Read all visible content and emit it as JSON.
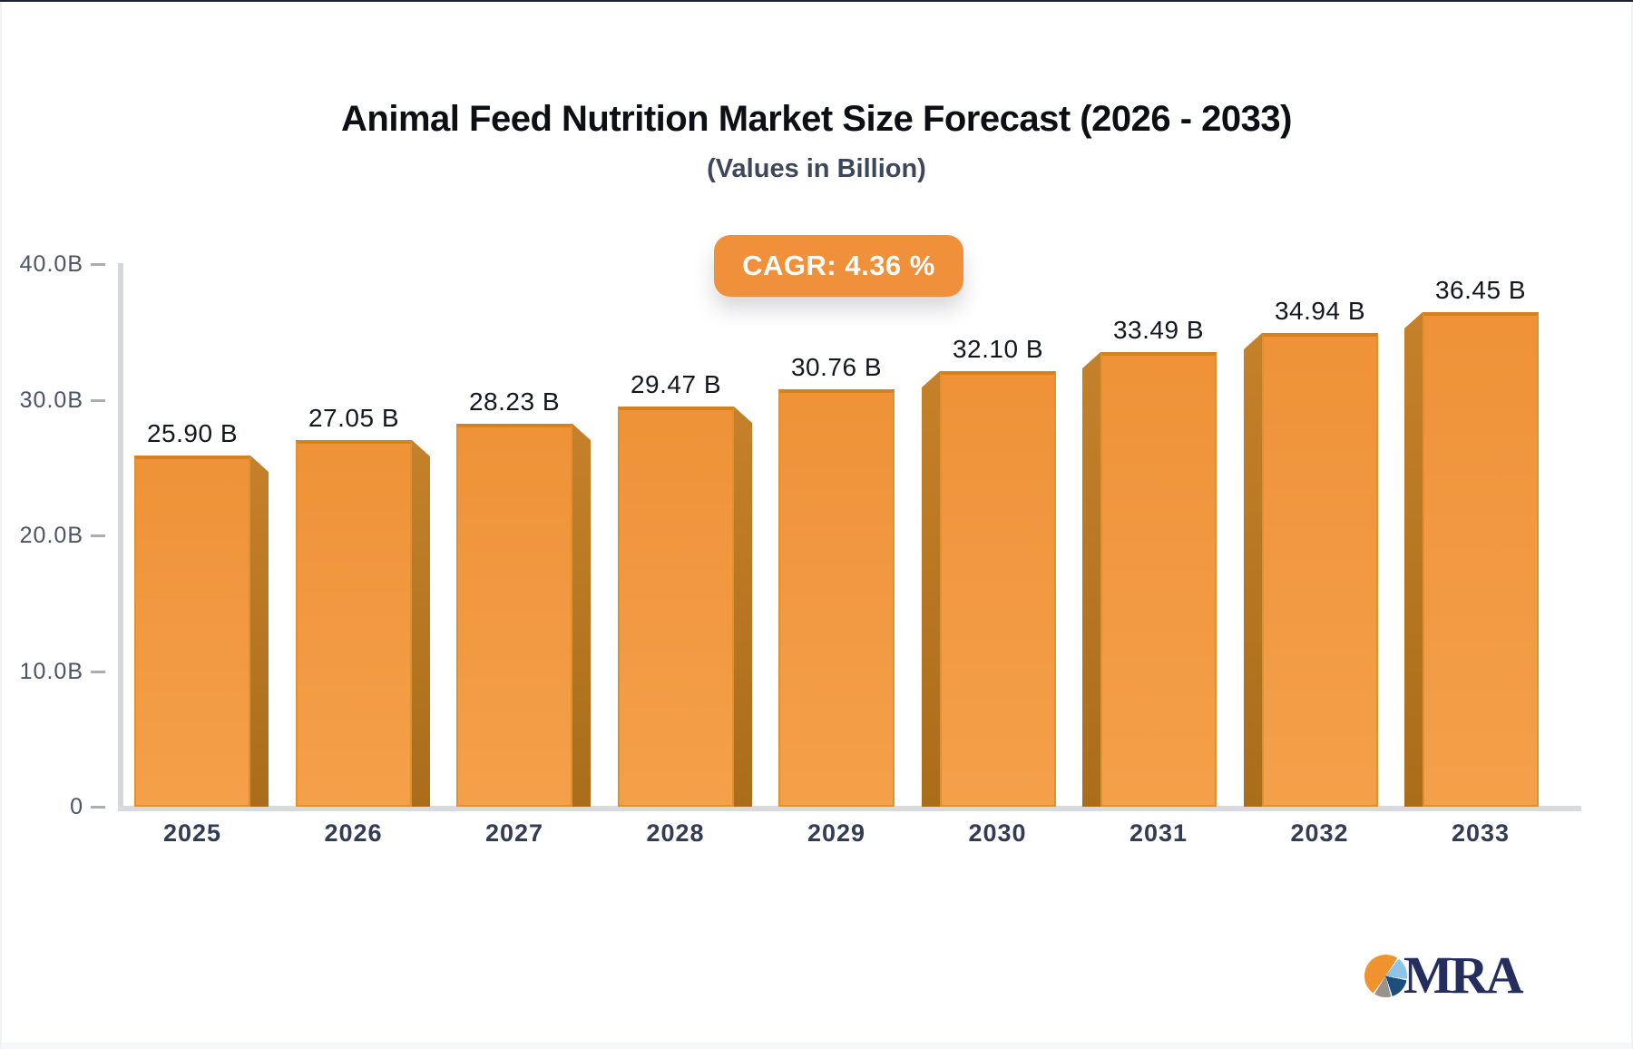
{
  "chart_data": {
    "type": "bar",
    "title": "Animal Feed Nutrition Market Size Forecast (2026 - 2033)",
    "subtitle": "(Values in Billion)",
    "cagr_badge_label": "CAGR: 4.36 %",
    "categories": [
      "2025",
      "2026",
      "2027",
      "2028",
      "2029",
      "2030",
      "2031",
      "2032",
      "2033"
    ],
    "values": [
      25.9,
      27.05,
      28.23,
      29.47,
      30.76,
      32.1,
      33.49,
      34.94,
      36.45
    ],
    "value_labels": [
      "25.90 B",
      "27.05 B",
      "28.23 B",
      "29.47 B",
      "30.76 B",
      "32.10 B",
      "33.49 B",
      "34.94 B",
      "36.45 B"
    ],
    "yticks": [
      {
        "label": "40.0B",
        "value": 40
      },
      {
        "label": "30.0B",
        "value": 30
      },
      {
        "label": "20.0B",
        "value": 20
      },
      {
        "label": "10.0B",
        "value": 10
      },
      {
        "label": "0",
        "value": 0
      }
    ],
    "ylim": [
      0,
      40
    ],
    "legend": null,
    "grid": false,
    "colors": {
      "bar_face_top": "#ef9238",
      "bar_face_bottom": "#f4a04a",
      "bar_side": "#b5761f",
      "bar_border": "#d5811d",
      "badge_background": "#f0903a",
      "badge_text": "#ffffff",
      "axis_line": "#d9dadf",
      "value_label_text": "#14171d",
      "axis_label_text": "#4d5468",
      "year_label_text": "#323c55",
      "title_text": "#0d0f14",
      "subtitle_text": "#3e4659"
    }
  },
  "logo": {
    "text": "MRA",
    "pie_colors": [
      "#f0922d",
      "#8cc5e8",
      "#1d4e80",
      "#98948c"
    ]
  }
}
